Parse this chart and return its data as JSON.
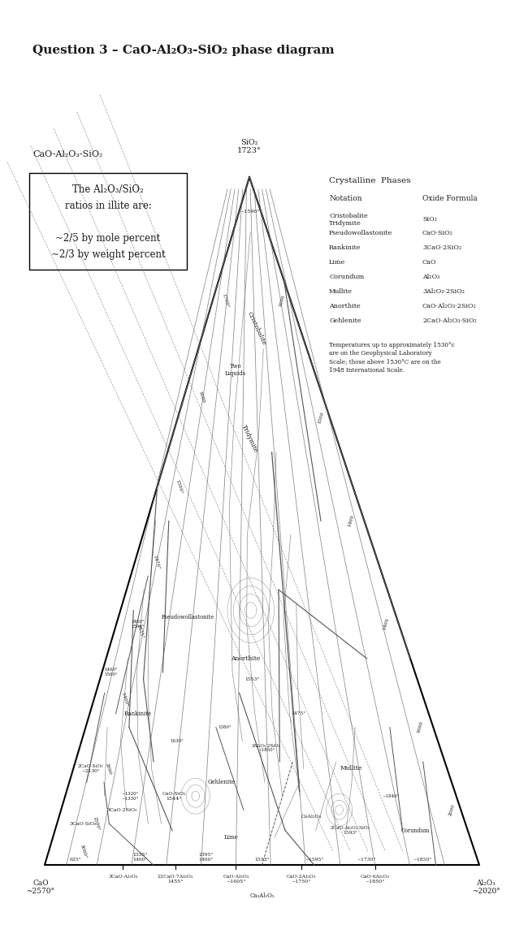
{
  "page_title": "Question 3 – CaO-Al₂O₃-SiO₂ phase diagram",
  "subtitle": "CaO-Al₂O₃-SiO₂",
  "box_lines": [
    "The Al₂O₃/SiO₂",
    "ratios in illite are:",
    "",
    "~2/5 by mole percent",
    "~2/3 by weight percent"
  ],
  "crystalline_phases_title": "Crystalline  Phases",
  "notation_header": "Notation",
  "formula_header": "Oxide Formula",
  "phases": [
    [
      "Cristobalite",
      ""
    ],
    [
      "Tridymite",
      "SiO₂"
    ],
    [
      "Pseudowollastonite",
      "CaO·SiO₂"
    ],
    [
      "Rankinite",
      "3CaO·2SiO₂"
    ],
    [
      "Lime",
      "CaO"
    ],
    [
      "Corundum",
      "Al₂O₃"
    ],
    [
      "Mullite",
      "3Al₂O₃·2SiO₂"
    ],
    [
      "Anorthite",
      "CaO·Al₂O₃·2SiO₂"
    ],
    [
      "Gehlenite",
      "2CaO·Al₂O₃·SiO₂"
    ]
  ],
  "temp_note": "Temperatures up to approximately 1530°c\nare on the Geophysical Laboratory\nScale; those above 1530°C are on the\n1948 International Scale.",
  "bg_color": "#ffffff",
  "text_color": "#1a1a1a",
  "line_color": "#555555"
}
